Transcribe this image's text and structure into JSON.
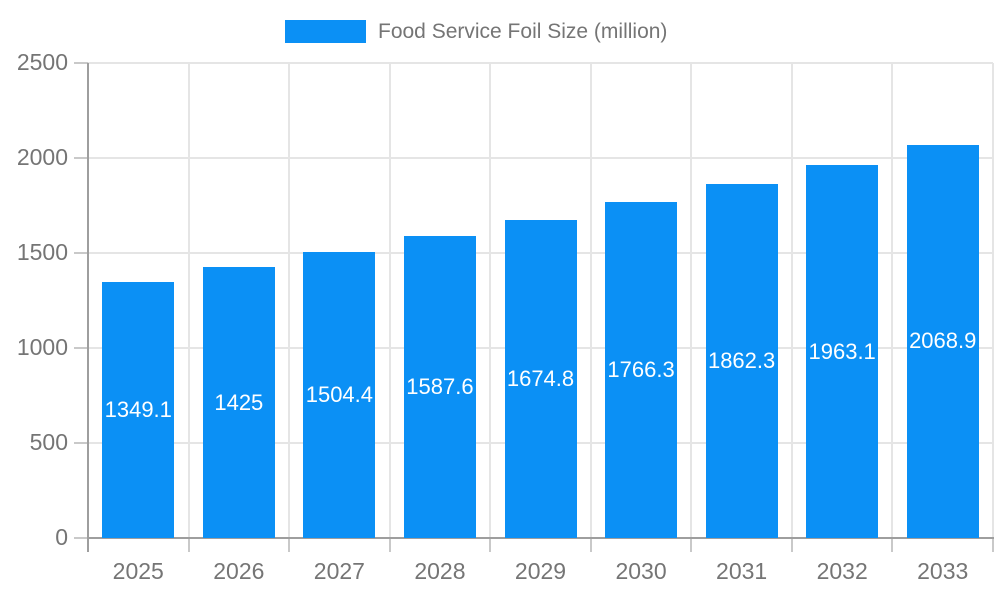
{
  "chart_data": {
    "type": "bar",
    "title": "Food Service Foil Size (million)",
    "legend_entries": [
      "Food Service Foil Size (million)"
    ],
    "legend_position": "top",
    "categories": [
      "2025",
      "2026",
      "2027",
      "2028",
      "2029",
      "2030",
      "2031",
      "2032",
      "2033"
    ],
    "values": [
      1349.1,
      1425,
      1504.4,
      1587.6,
      1674.8,
      1766.3,
      1862.3,
      1963.1,
      2068.9
    ],
    "value_labels": [
      "1349.1",
      "1425",
      "1504.4",
      "1587.6",
      "1674.8",
      "1766.3",
      "1862.3",
      "1963.1",
      "2068.9"
    ],
    "xlabel": "",
    "ylabel": "",
    "ylim": [
      0,
      2500
    ],
    "yticks": [
      0,
      500,
      1000,
      1500,
      2000,
      2500
    ],
    "grid": true,
    "colors": {
      "bar_fill": "#0b90f5",
      "value_label_text": "#ffffff",
      "grid_line": "#e5e5e5",
      "axis_line": "#9e9e9e",
      "tick_mark": "#c9c9c9",
      "tick_text": "#757575",
      "legend_text": "#757575",
      "background": "#ffffff"
    }
  }
}
